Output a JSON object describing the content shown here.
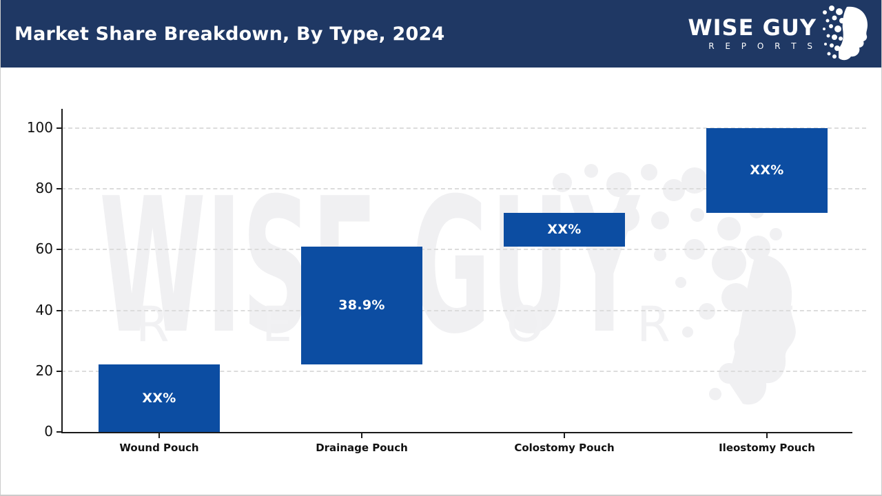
{
  "header": {
    "title": "Market Share Breakdown, By Type, 2024",
    "logo": {
      "primary": "WISE GUY",
      "secondary": "R E P O R T S"
    }
  },
  "watermark": {
    "primary": "WISE GUY",
    "secondary": "R E P O R T S"
  },
  "chart_data": {
    "type": "bar",
    "subtype": "floating-segment-waterfall",
    "title": "Market Share Breakdown, By Type, 2024",
    "categories": [
      "Wound Pouch",
      "Drainage Pouch",
      "Colostomy Pouch",
      "Ileostomy Pouch"
    ],
    "labels": [
      "XX%",
      "38.9%",
      "XX%",
      "XX%"
    ],
    "values": [
      22.2,
      38.9,
      11.1,
      27.8
    ],
    "starts": [
      0,
      22.2,
      61.1,
      72.2
    ],
    "ends": [
      22.2,
      61.1,
      72.2,
      100
    ],
    "ylim": [
      0,
      100
    ],
    "yticks": [
      0,
      20,
      40,
      60,
      80,
      100
    ],
    "xlabel": "",
    "ylabel": "",
    "grid": "horizontal-dashed",
    "legend": "none"
  },
  "colors": {
    "header_bg": "#1F3864",
    "bar": "#0C4DA2",
    "bar_label": "#FFFFFF",
    "axis": "#1A1A1A",
    "gridline": "#DCDCDC",
    "watermark": "#F0F0F2",
    "page_border": "#CCCCCC"
  }
}
